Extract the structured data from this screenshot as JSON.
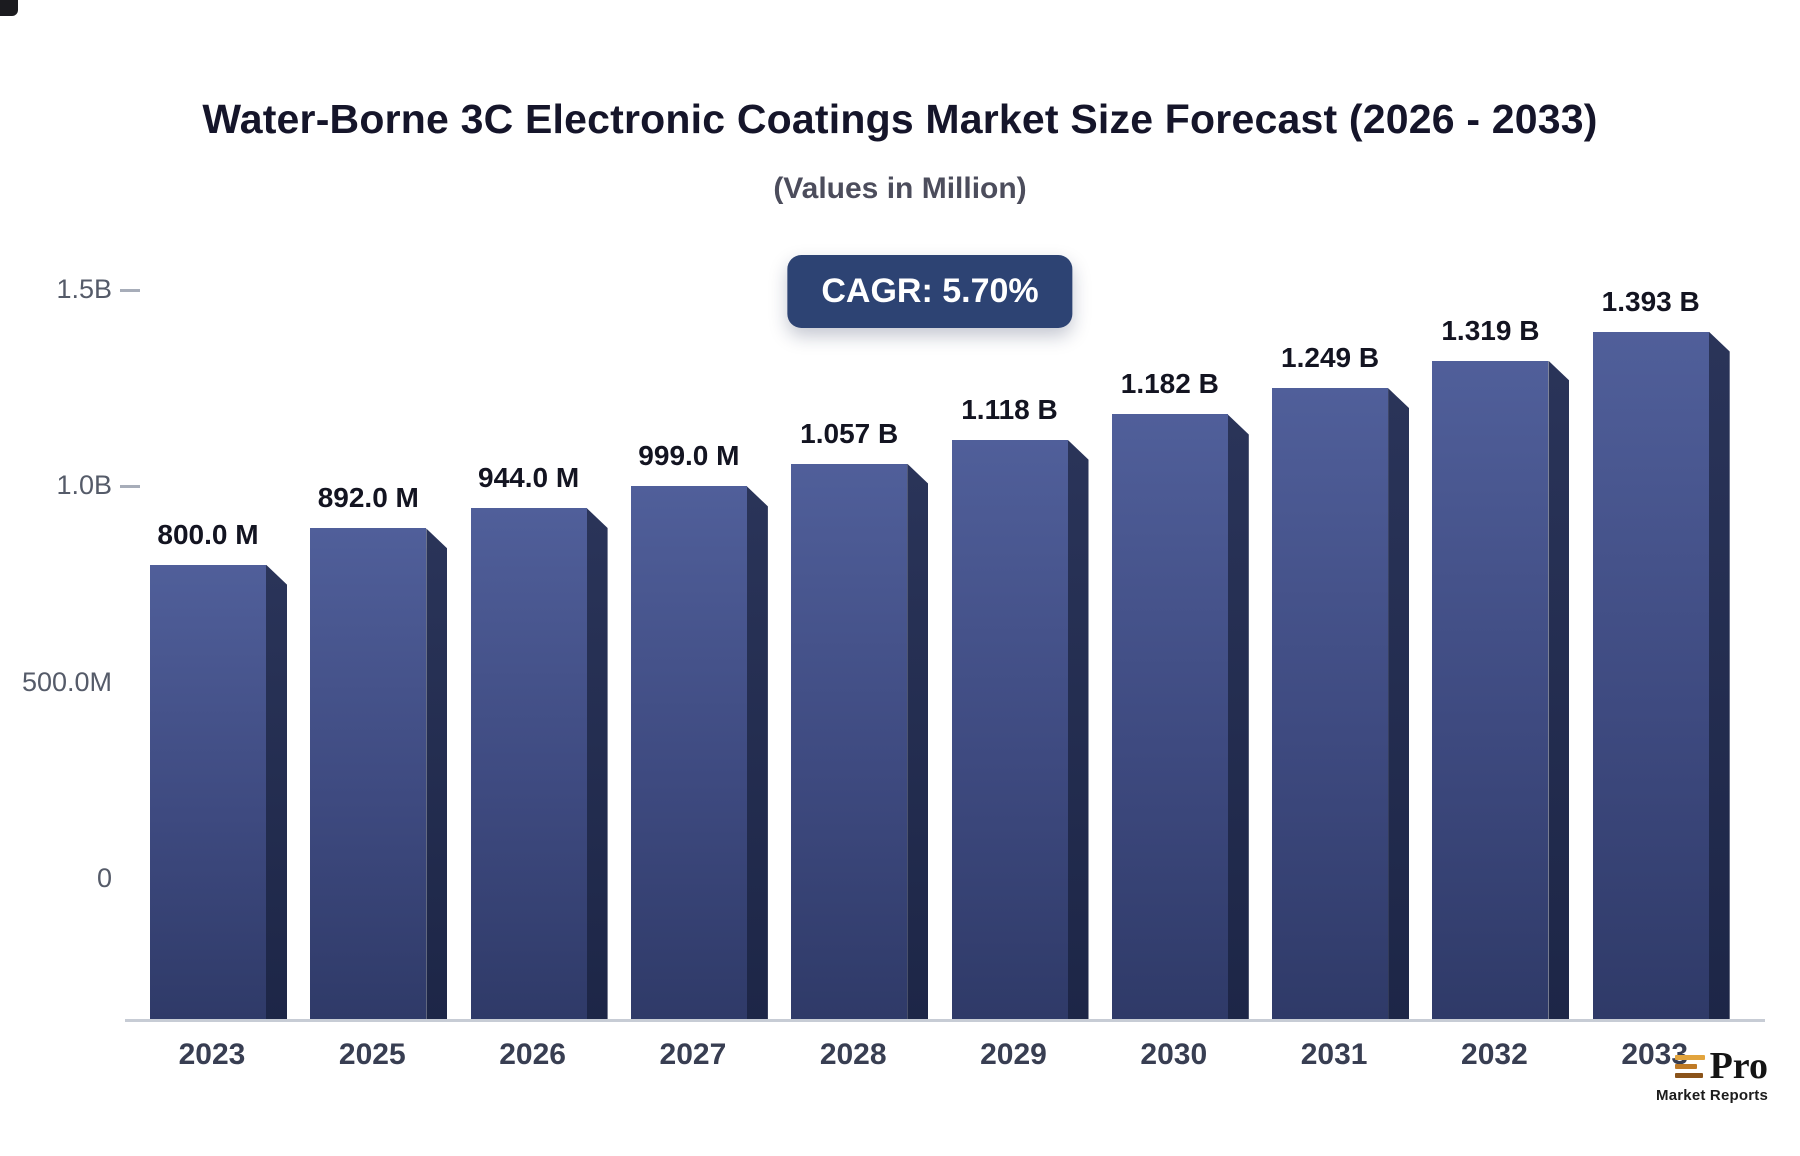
{
  "header": {
    "title": "Water-Borne 3C Electronic Coatings Market Size Forecast (2026 - 2033)",
    "subtitle": "(Values in Million)",
    "cagr_label": "CAGR: 5.70%"
  },
  "chart_data": {
    "type": "bar",
    "title": "Water-Borne 3C Electronic Coatings Market Size Forecast (2026 - 2033)",
    "subtitle": "(Values in Million)",
    "unit": "Million",
    "cagr": "5.70%",
    "categories": [
      "2023",
      "2025",
      "2026",
      "2027",
      "2028",
      "2029",
      "2030",
      "2031",
      "2032",
      "2033"
    ],
    "values": [
      800,
      892,
      944,
      999,
      1057,
      1118,
      1182,
      1249,
      1319,
      1393
    ],
    "value_labels": [
      "800.0 M",
      "892.0 M",
      "944.0 M",
      "999.0 M",
      "1.057 B",
      "1.118 B",
      "1.182 B",
      "1.249 B",
      "1.319 B",
      "1.393 B"
    ],
    "xlabel": "",
    "ylabel": "",
    "ylim": [
      0,
      1500
    ],
    "grid": false,
    "legend": "none",
    "yticks": [
      {
        "label": "1.5B",
        "value": 1500,
        "dash": true
      },
      {
        "label": "1.0B",
        "value": 1000,
        "dash": true
      },
      {
        "label": "500.0M",
        "value": 500,
        "dash": false
      },
      {
        "label": "0",
        "value": 0,
        "dash": false
      }
    ]
  },
  "colors": {
    "title": "#15152a",
    "subtitle": "#4c4d5c",
    "badge_bg": "#2d4373",
    "bar_top": "#505f9a",
    "bar_mid": "#3e4a80",
    "bar_bottom": "#2f3a68",
    "side_top": "#2a3459",
    "side_bottom": "#1d2647",
    "axis_line": "#c7ccd5",
    "dash": "#a7adb9",
    "tick_label": "#555b69",
    "year_label": "#383e52",
    "value_label": "#131421"
  },
  "logo": {
    "brand": "Pro",
    "tagline": "Market Reports"
  }
}
